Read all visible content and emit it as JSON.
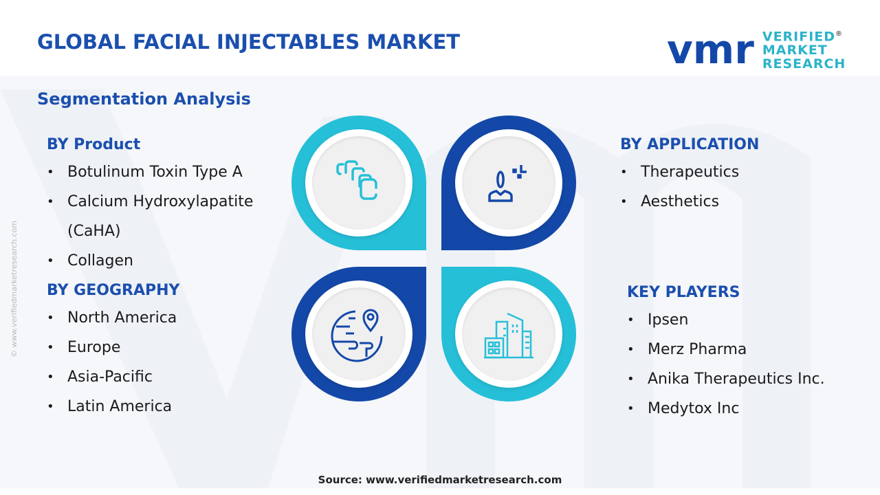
{
  "title": "GLOBAL FACIAL INJECTABLES MARKET",
  "subtitle": "Segmentation Analysis",
  "logo": {
    "mark": "vmr",
    "line1": "VERIFIED",
    "line2": "MARKET",
    "line3": "RESEARCH",
    "registered": "®"
  },
  "side_text": "© www.verifiedmarketresearch.com",
  "sections": {
    "product": {
      "heading": "BY Product",
      "items": [
        "Botulinum Toxin Type A",
        "Calcium Hydroxylapatite (CaHA)",
        "Collagen"
      ]
    },
    "application": {
      "heading": "BY APPLICATION",
      "items": [
        "Therapeutics",
        "Aesthetics"
      ]
    },
    "geography": {
      "heading": "BY GEOGRAPHY",
      "items": [
        "North America",
        "Europe",
        "Asia-Pacific",
        "Latin America"
      ]
    },
    "players": {
      "heading": "KEY PLAYERS",
      "items": [
        "Ipsen",
        "Merz Pharma",
        "Anika Therapeutics Inc.",
        "Medytox Inc"
      ]
    }
  },
  "icons": [
    "layers-icon",
    "person-icon",
    "globe-location-icon",
    "buildings-icon"
  ],
  "colors": {
    "primary": "#1448a8",
    "accent": "#26bfd8"
  },
  "source": "Source: www.verifiedmarketresearch.com"
}
